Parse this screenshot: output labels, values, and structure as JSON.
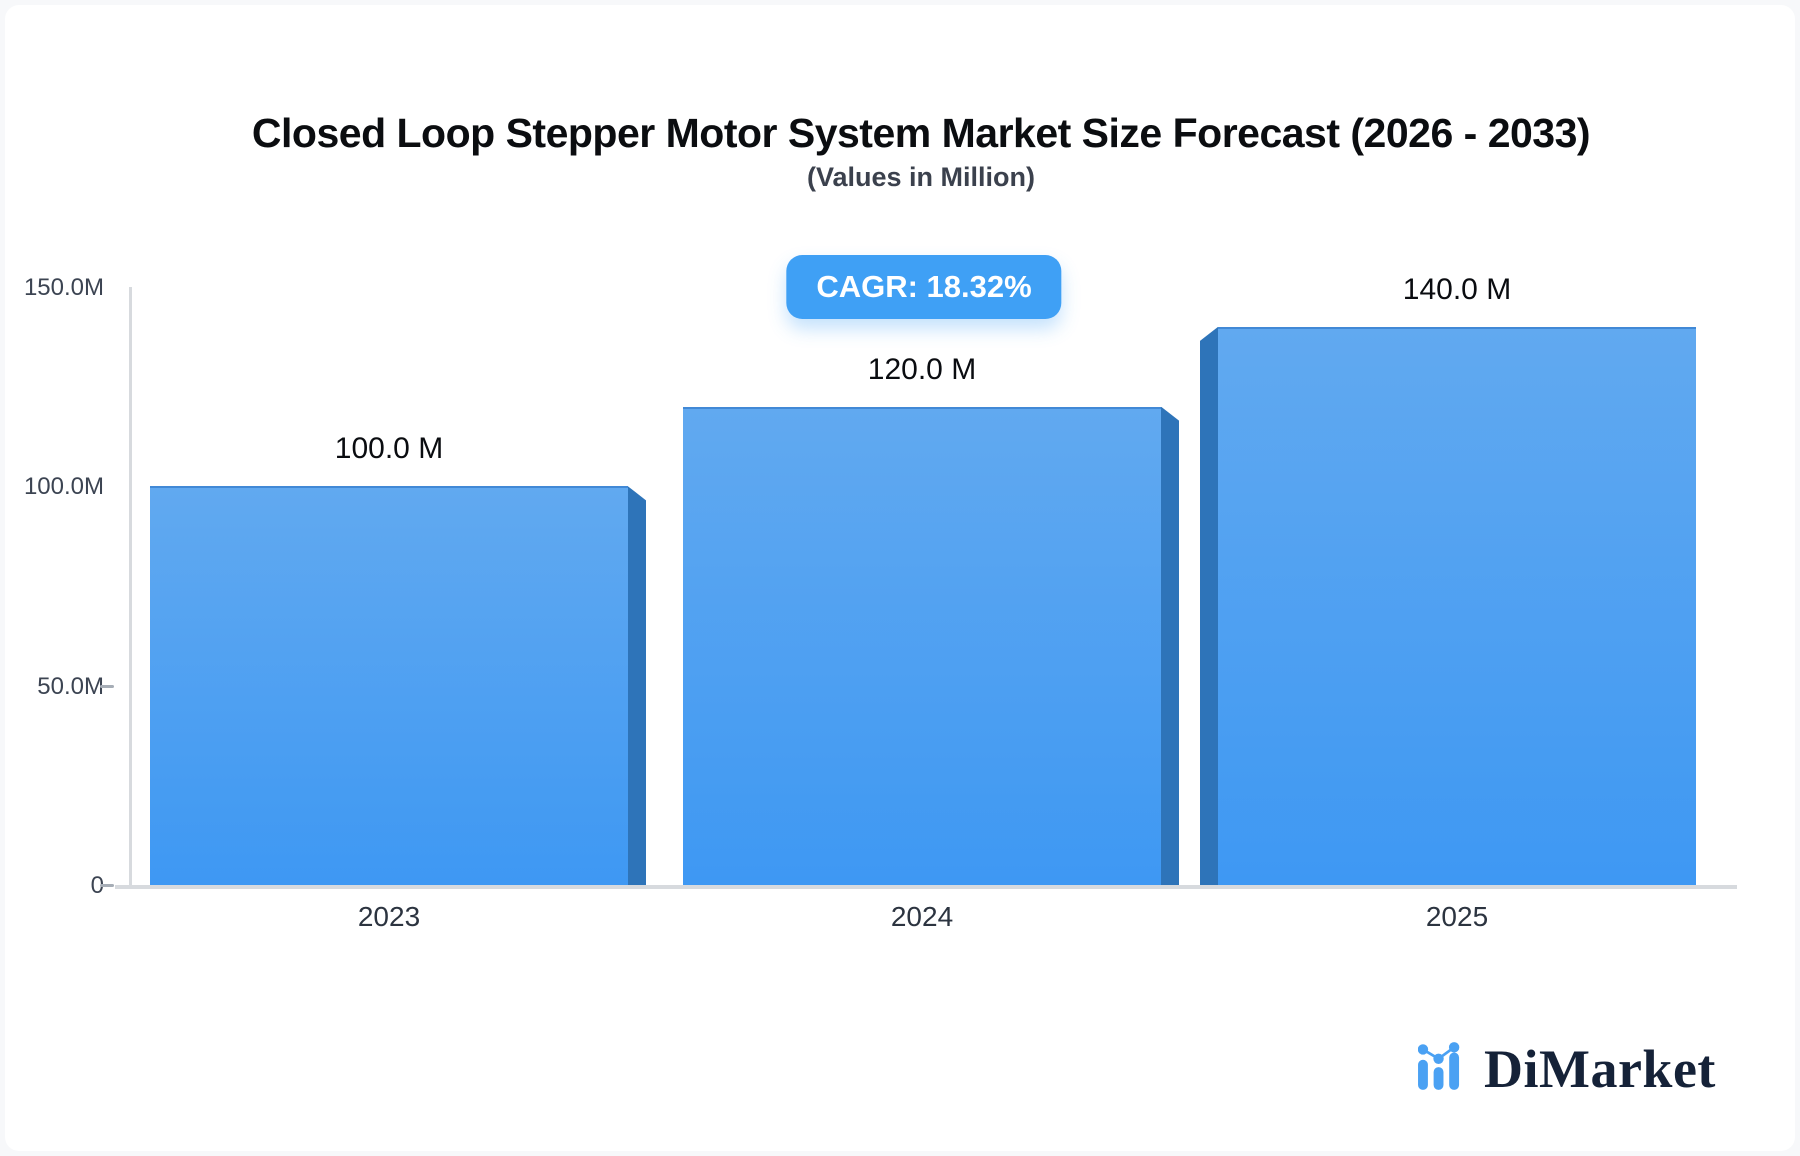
{
  "page": {
    "background": "#f7f8fa",
    "card_background": "#ffffff"
  },
  "header": {
    "title": "Closed Loop Stepper Motor System Market Size Forecast (2026 - 2033)",
    "subtitle": "(Values in Million)"
  },
  "cagr_badge": {
    "label": "CAGR: 18.32%",
    "background": "#3fa0f5",
    "text_color": "#ffffff"
  },
  "chart_data": {
    "type": "bar",
    "title": "Closed Loop Stepper Motor System Market Size Forecast (2026 - 2033)",
    "subtitle": "(Values in Million)",
    "unit": "Million (M)",
    "cagr": "18.32%",
    "categories": [
      "2023",
      "2024",
      "2025"
    ],
    "values": [
      100.0,
      120.0,
      140.0
    ],
    "value_labels": [
      "100.0 M",
      "120.0 M",
      "140.0 M"
    ],
    "y_axis": {
      "range": [
        0,
        150
      ],
      "ticks": [
        {
          "label": "150.0M",
          "value": 150
        },
        {
          "label": "100.0M",
          "value": 100
        },
        {
          "label": "50.0M",
          "value": 50
        },
        {
          "label": "0",
          "value": 0
        }
      ]
    },
    "grid": false,
    "legend": "none",
    "bar_colors": {
      "face_top": "#61a9f0",
      "face_bottom": "#3e98f3",
      "side": "#2e74b9",
      "edge": "#4189d6"
    }
  },
  "footer": {
    "brand_name": "DiMarket",
    "logo_icon": "dimarket-bar-chart-icon",
    "brand_text_color": "#152238",
    "brand_icon_color": "#4aa1f3"
  }
}
